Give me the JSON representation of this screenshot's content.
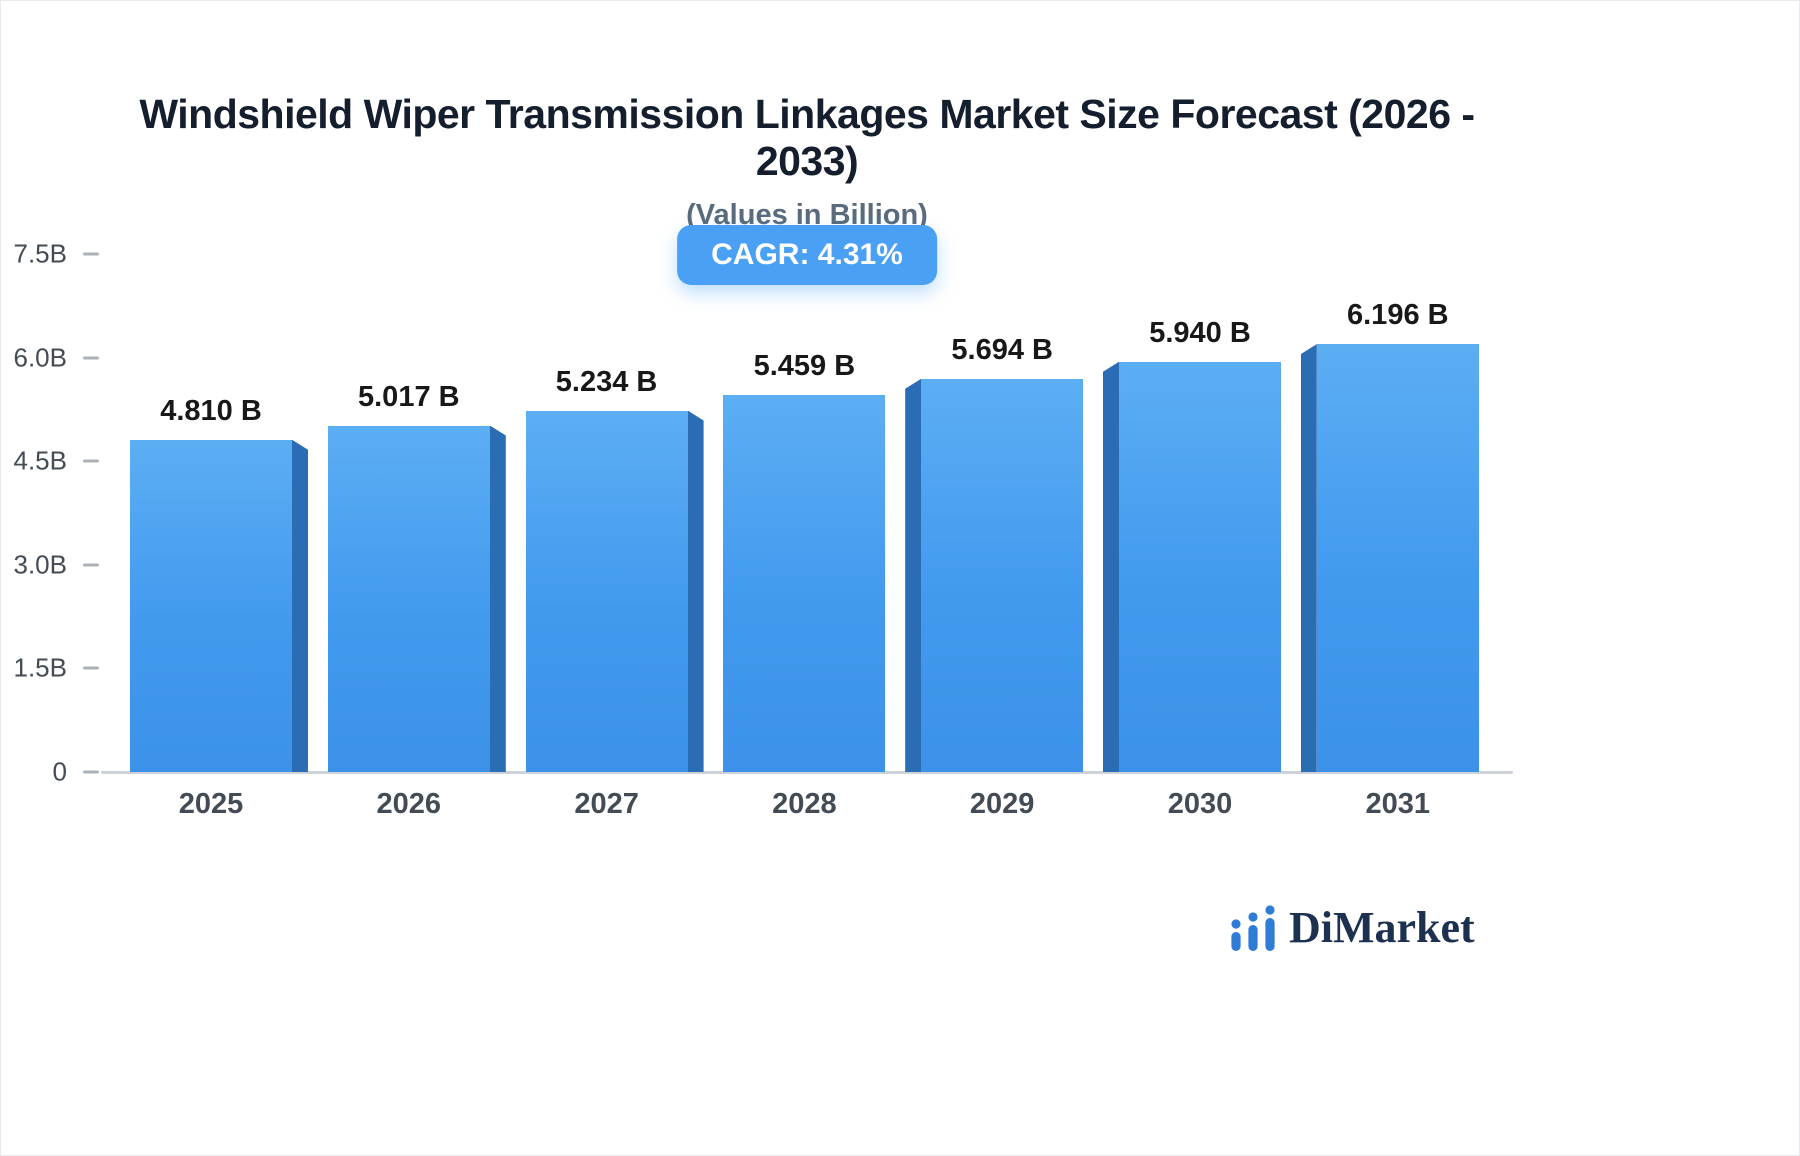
{
  "chart_data": {
    "type": "bar",
    "title": "Windshield Wiper Transmission Linkages Market Size Forecast (2026 - 2033)",
    "subtitle": "(Values in Billion)",
    "cagr_label": "CAGR: 4.31%",
    "categories": [
      "2025",
      "2026",
      "2027",
      "2028",
      "2029",
      "2030",
      "2031"
    ],
    "values": [
      4.81,
      5.017,
      5.234,
      5.459,
      5.694,
      5.94,
      6.196
    ],
    "value_labels": [
      "4.810 B",
      "5.017 B",
      "5.234 B",
      "5.459 B",
      "5.694 B",
      "5.940 B",
      "6.196 B"
    ],
    "xlabel": "",
    "ylabel": "",
    "ylim": [
      0,
      7.5
    ],
    "y_ticks": [
      0,
      1.5,
      3.0,
      4.5,
      6.0,
      7.5
    ],
    "y_tick_labels": [
      "0",
      "1.5B",
      "3.0B",
      "4.5B",
      "6.0B",
      "7.5B"
    ],
    "grid": false,
    "legend": "none",
    "bar_style": "3d-extruded",
    "colors": {
      "bar_front": "#429aef",
      "bar_front_light": "#5caef3",
      "bar_side": "#2a6db4",
      "badge_bg": "#49a0f4",
      "badge_text": "#ffffff",
      "title": "#141e2c",
      "subtitle": "#5a6b7d",
      "axis_text": "#434b54",
      "value_text": "#17181a",
      "baseline": "#ccd2d8"
    }
  },
  "footer": {
    "logo_text": "DiMarket",
    "logo_color": "#2e7cd6",
    "logo_text_color": "#1c3150"
  }
}
